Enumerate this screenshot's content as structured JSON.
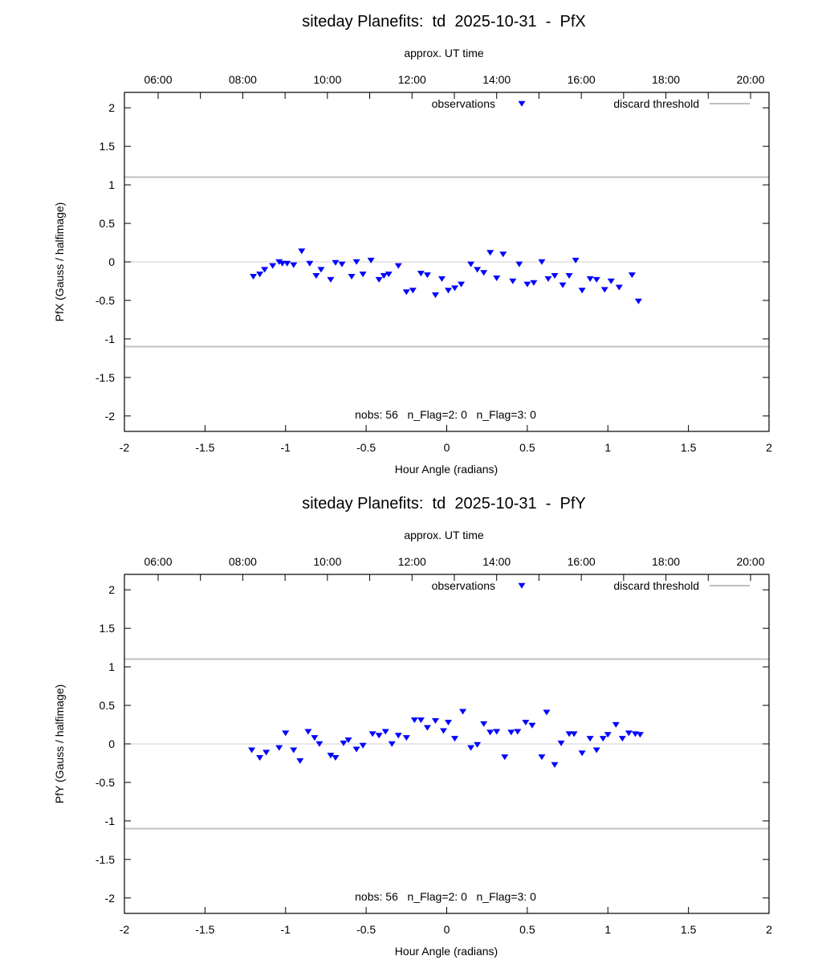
{
  "colors": {
    "observations": "#0000ff",
    "discard_threshold": "#c0c0c0",
    "zero_line": "#d0d0d0",
    "axis": "#000000",
    "background": "#ffffff"
  },
  "chart_data": [
    {
      "type": "scatter",
      "title": "siteday Planefits:  td  2025-10-31  -  PfX",
      "x2label": "approx. UT time",
      "x2ticks": {
        "labels": [
          "06:00",
          "08:00",
          "10:00",
          "12:00",
          "14:00",
          "16:00",
          "18:00",
          "20:00"
        ],
        "label_hours": [
          6,
          8,
          10,
          12,
          14,
          16,
          18,
          20
        ],
        "minor_tick_every_hour": true,
        "range_hours": [
          6,
          20
        ]
      },
      "xlabel": "Hour Angle (radians)",
      "ylabel": "PfX (Gauss / halfimage)",
      "xlim": [
        -2,
        2
      ],
      "ylim": [
        -2.2,
        2.2
      ],
      "xticks": [
        -2,
        -1.5,
        -1,
        -0.5,
        0,
        0.5,
        1,
        1.5,
        2
      ],
      "yticks": [
        2,
        1.5,
        1,
        0.5,
        0,
        -0.5,
        -1,
        -1.5,
        -2
      ],
      "grid": "zero-axis-only",
      "legend": {
        "position": "top-inside",
        "observations_label": "observations",
        "threshold_label": "discard threshold"
      },
      "discard_threshold": 1.1,
      "annotation": "nobs: 56   n_Flag=2: 0   n_Flag=3: 0",
      "marker": "filled-triangle-down",
      "points": [
        [
          -1.2,
          -0.19
        ],
        [
          -1.16,
          -0.16
        ],
        [
          -1.13,
          -0.1
        ],
        [
          -1.08,
          -0.05
        ],
        [
          -1.04,
          0.0
        ],
        [
          -1.02,
          -0.02
        ],
        [
          -0.99,
          -0.02
        ],
        [
          -0.95,
          -0.04
        ],
        [
          -0.9,
          0.14
        ],
        [
          -0.85,
          -0.02
        ],
        [
          -0.81,
          -0.18
        ],
        [
          -0.78,
          -0.1
        ],
        [
          -0.72,
          -0.23
        ],
        [
          -0.69,
          -0.01
        ],
        [
          -0.65,
          -0.03
        ],
        [
          -0.59,
          -0.19
        ],
        [
          -0.56,
          0.0
        ],
        [
          -0.52,
          -0.16
        ],
        [
          -0.47,
          0.02
        ],
        [
          -0.42,
          -0.23
        ],
        [
          -0.39,
          -0.18
        ],
        [
          -0.36,
          -0.16
        ],
        [
          -0.3,
          -0.05
        ],
        [
          -0.25,
          -0.39
        ],
        [
          -0.21,
          -0.37
        ],
        [
          -0.16,
          -0.15
        ],
        [
          -0.12,
          -0.17
        ],
        [
          -0.07,
          -0.43
        ],
        [
          -0.03,
          -0.22
        ],
        [
          0.01,
          -0.37
        ],
        [
          0.05,
          -0.34
        ],
        [
          0.09,
          -0.29
        ],
        [
          0.15,
          -0.03
        ],
        [
          0.19,
          -0.1
        ],
        [
          0.23,
          -0.14
        ],
        [
          0.27,
          0.12
        ],
        [
          0.31,
          -0.21
        ],
        [
          0.35,
          0.1
        ],
        [
          0.41,
          -0.25
        ],
        [
          0.45,
          -0.03
        ],
        [
          0.5,
          -0.29
        ],
        [
          0.54,
          -0.27
        ],
        [
          0.59,
          0.0
        ],
        [
          0.63,
          -0.22
        ],
        [
          0.67,
          -0.18
        ],
        [
          0.72,
          -0.3
        ],
        [
          0.76,
          -0.18
        ],
        [
          0.8,
          0.02
        ],
        [
          0.84,
          -0.37
        ],
        [
          0.89,
          -0.22
        ],
        [
          0.93,
          -0.23
        ],
        [
          0.98,
          -0.36
        ],
        [
          1.02,
          -0.25
        ],
        [
          1.07,
          -0.33
        ],
        [
          1.15,
          -0.17
        ],
        [
          1.19,
          -0.51
        ]
      ]
    },
    {
      "type": "scatter",
      "title": "siteday Planefits:  td  2025-10-31  -  PfY",
      "x2label": "approx. UT time",
      "x2ticks": {
        "labels": [
          "06:00",
          "08:00",
          "10:00",
          "12:00",
          "14:00",
          "16:00",
          "18:00",
          "20:00"
        ],
        "label_hours": [
          6,
          8,
          10,
          12,
          14,
          16,
          18,
          20
        ],
        "minor_tick_every_hour": true,
        "range_hours": [
          6,
          20
        ]
      },
      "xlabel": "Hour Angle (radians)",
      "ylabel": "PfY (Gauss / halfimage)",
      "xlim": [
        -2,
        2
      ],
      "ylim": [
        -2.2,
        2.2
      ],
      "xticks": [
        -2,
        -1.5,
        -1,
        -0.5,
        0,
        0.5,
        1,
        1.5,
        2
      ],
      "yticks": [
        2,
        1.5,
        1,
        0.5,
        0,
        -0.5,
        -1,
        -1.5,
        -2
      ],
      "grid": "zero-axis-only",
      "legend": {
        "position": "top-inside",
        "observations_label": "observations",
        "threshold_label": "discard threshold"
      },
      "discard_threshold": 1.1,
      "annotation": "nobs: 56   n_Flag=2: 0   n_Flag=3: 0",
      "marker": "filled-triangle-down",
      "points": [
        [
          -1.21,
          -0.08
        ],
        [
          -1.16,
          -0.18
        ],
        [
          -1.12,
          -0.11
        ],
        [
          -1.04,
          -0.05
        ],
        [
          -1.0,
          0.14
        ],
        [
          -0.95,
          -0.08
        ],
        [
          -0.91,
          -0.22
        ],
        [
          -0.86,
          0.16
        ],
        [
          -0.82,
          0.08
        ],
        [
          -0.79,
          0.0
        ],
        [
          -0.72,
          -0.15
        ],
        [
          -0.69,
          -0.18
        ],
        [
          -0.64,
          0.01
        ],
        [
          -0.61,
          0.05
        ],
        [
          -0.56,
          -0.07
        ],
        [
          -0.52,
          -0.02
        ],
        [
          -0.46,
          0.13
        ],
        [
          -0.42,
          0.11
        ],
        [
          -0.38,
          0.16
        ],
        [
          -0.34,
          0.0
        ],
        [
          -0.3,
          0.11
        ],
        [
          -0.25,
          0.08
        ],
        [
          -0.2,
          0.31
        ],
        [
          -0.16,
          0.31
        ],
        [
          -0.12,
          0.21
        ],
        [
          -0.07,
          0.3
        ],
        [
          -0.02,
          0.17
        ],
        [
          0.01,
          0.28
        ],
        [
          0.05,
          0.07
        ],
        [
          0.1,
          0.42
        ],
        [
          0.15,
          -0.05
        ],
        [
          0.19,
          -0.01
        ],
        [
          0.23,
          0.26
        ],
        [
          0.27,
          0.15
        ],
        [
          0.31,
          0.16
        ],
        [
          0.36,
          -0.17
        ],
        [
          0.4,
          0.15
        ],
        [
          0.44,
          0.16
        ],
        [
          0.49,
          0.28
        ],
        [
          0.53,
          0.24
        ],
        [
          0.59,
          -0.17
        ],
        [
          0.62,
          0.41
        ],
        [
          0.67,
          -0.27
        ],
        [
          0.71,
          0.01
        ],
        [
          0.76,
          0.13
        ],
        [
          0.79,
          0.13
        ],
        [
          0.84,
          -0.12
        ],
        [
          0.89,
          0.07
        ],
        [
          0.93,
          -0.08
        ],
        [
          0.97,
          0.07
        ],
        [
          1.0,
          0.12
        ],
        [
          1.05,
          0.25
        ],
        [
          1.09,
          0.07
        ],
        [
          1.13,
          0.14
        ],
        [
          1.17,
          0.13
        ],
        [
          1.2,
          0.12
        ]
      ]
    }
  ]
}
